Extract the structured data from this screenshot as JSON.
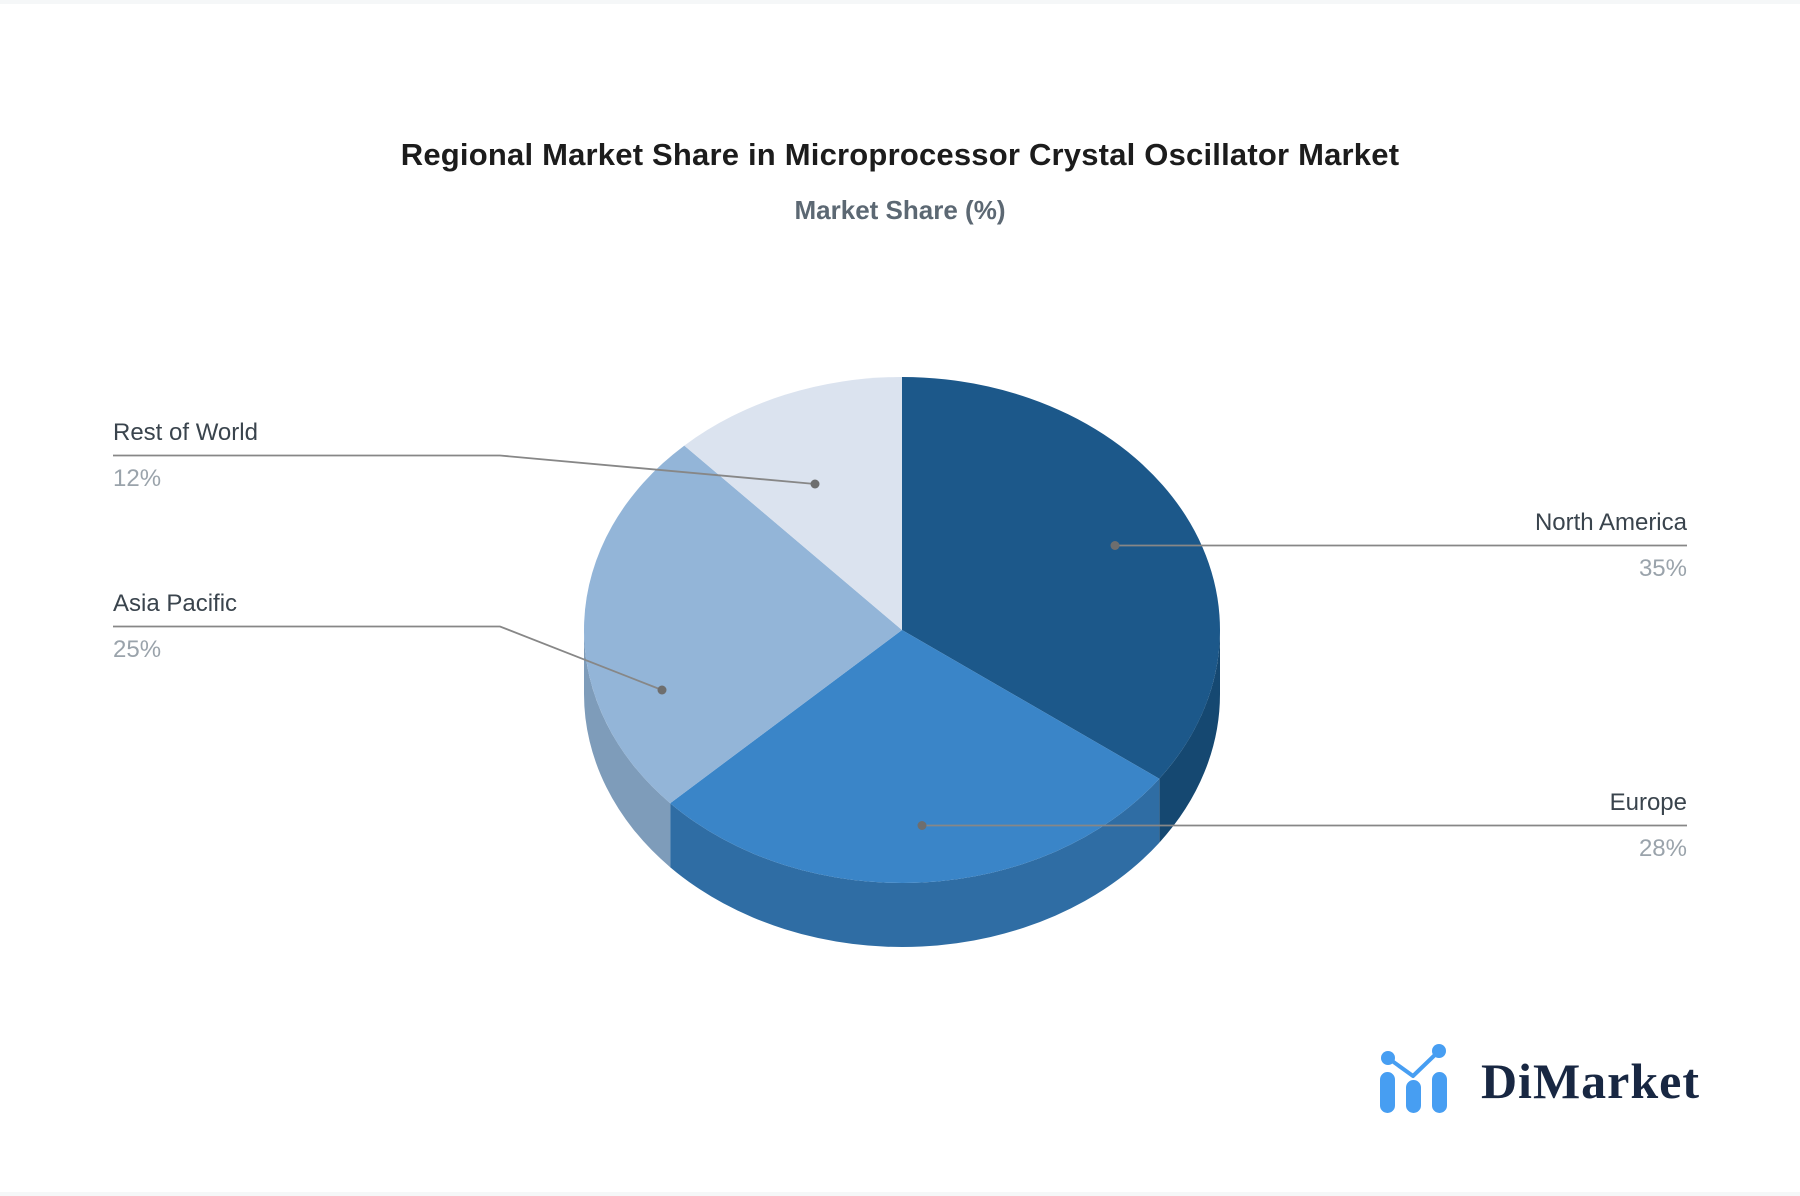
{
  "header": {
    "title": "Regional Market Share in Microprocessor Crystal Oscillator Market",
    "subtitle": "Market Share (%)"
  },
  "chart_data": {
    "type": "pie",
    "style": "3d",
    "title": "Regional Market Share in Microprocessor Crystal Oscillator Market",
    "subtitle": "Market Share (%)",
    "unit": "%",
    "direction": "clockwise",
    "start_angle_deg": 0,
    "legend": "none",
    "slices": [
      {
        "label": "North America",
        "value": 35,
        "pct_label": "35%",
        "color_top": "#1c588a",
        "color_side": "#154871"
      },
      {
        "label": "Europe",
        "value": 28,
        "pct_label": "28%",
        "color_top": "#3a85c8",
        "color_side": "#2f6da4"
      },
      {
        "label": "Asia Pacific",
        "value": 25,
        "pct_label": "25%",
        "color_top": "#93b5d8",
        "color_side": "#7e9cba"
      },
      {
        "label": "Rest of World",
        "value": 12,
        "pct_label": "12%",
        "color_top": "#dbe3ef",
        "color_side": "#c4cfdd"
      }
    ]
  },
  "branding": {
    "logo_text": "DiMarket",
    "logo_text_color": "#182742",
    "logo_icon_color": "#479ef2",
    "logo_icon": "bar-chart-logo-icon"
  },
  "colors": {
    "background": "#ffffff",
    "title": "#1c1c1c",
    "subtitle": "#5c6873",
    "label_text": "#3a444d",
    "pct_text": "#9aa3ab",
    "connector": "#878787",
    "connector_dot": "#6e6e6e"
  }
}
